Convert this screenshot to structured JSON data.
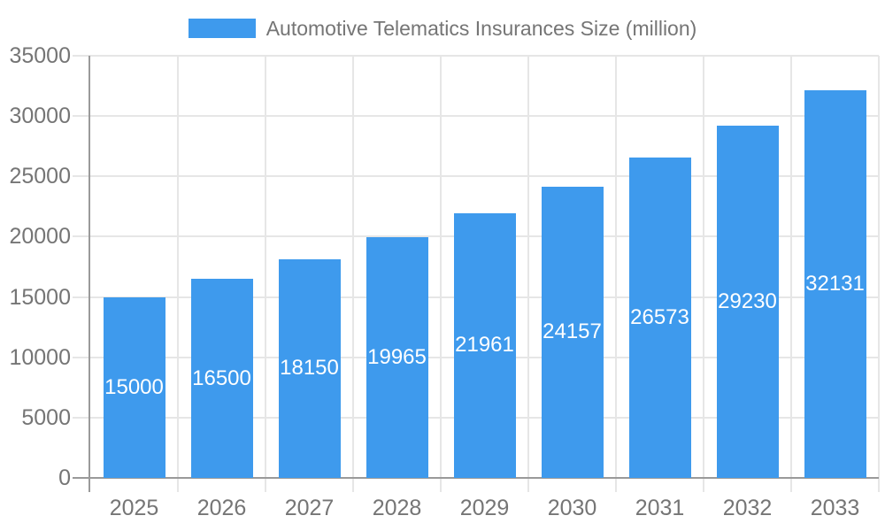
{
  "legend": {
    "label": "Automotive Telematics Insurances Size (million)"
  },
  "chart_data": {
    "type": "bar",
    "title": "Automotive Telematics Insurances Size (million)",
    "categories": [
      "2025",
      "2026",
      "2027",
      "2028",
      "2029",
      "2030",
      "2031",
      "2032",
      "2033"
    ],
    "values": [
      15000,
      16500,
      18150,
      19965,
      21961,
      24157,
      26573,
      29230,
      32131
    ],
    "bar_labels": [
      "15000",
      "16500",
      "18150",
      "19965",
      "21961",
      "24157",
      "26573",
      "29230",
      "32131"
    ],
    "xlabel": "",
    "ylabel": "",
    "ylim": [
      0,
      35000
    ],
    "ytick_step": 5000,
    "ytick_labels": [
      "0",
      "5000",
      "10000",
      "15000",
      "20000",
      "25000",
      "30000",
      "35000"
    ],
    "grid": true,
    "legend_position": "top"
  },
  "colors": {
    "bar": "#3e9aed",
    "bar_label": "#ffffff",
    "axis_text": "#757575",
    "grid_line": "#e6e6e6",
    "axis_line": "#9a9a9a",
    "background": "#ffffff"
  }
}
